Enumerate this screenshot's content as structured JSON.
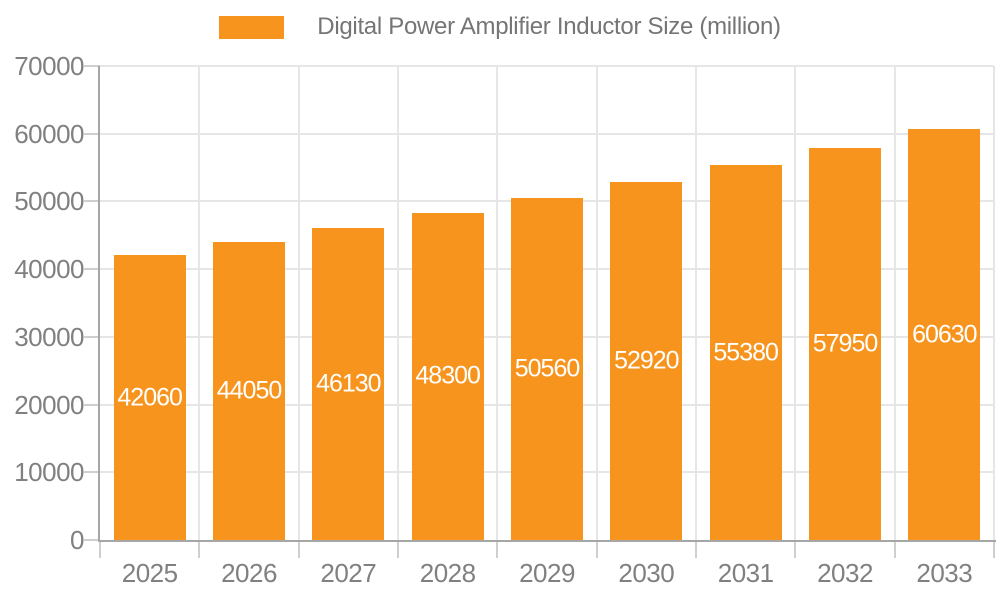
{
  "chart_data": {
    "type": "bar",
    "title": "Digital Power Amplifier Inductor Size (million)",
    "legend_position": "top-center",
    "categories": [
      "2025",
      "2026",
      "2027",
      "2028",
      "2029",
      "2030",
      "2031",
      "2032",
      "2033"
    ],
    "values": [
      42060,
      44050,
      46130,
      48300,
      50560,
      52920,
      55380,
      57950,
      60630
    ],
    "value_labels": [
      "42060",
      "44050",
      "46130",
      "48300",
      "50560",
      "52920",
      "55380",
      "57950",
      "60630"
    ],
    "xlabel": "",
    "ylabel": "",
    "ylim": [
      0,
      70000
    ],
    "yticks": [
      0,
      10000,
      20000,
      30000,
      40000,
      50000,
      60000,
      70000
    ],
    "ytick_labels": [
      "0",
      "10000",
      "20000",
      "30000",
      "40000",
      "50000",
      "60000",
      "70000"
    ],
    "grid": true,
    "colors": {
      "bar": "#F7941E",
      "grid": "#E6E6E6",
      "axis": "#A6A6A6",
      "tick": "#CFCFCF",
      "axis_label": "#808080",
      "title": "#757575",
      "value_label": "#FFFFFF",
      "background": "#FFFFFF"
    }
  }
}
